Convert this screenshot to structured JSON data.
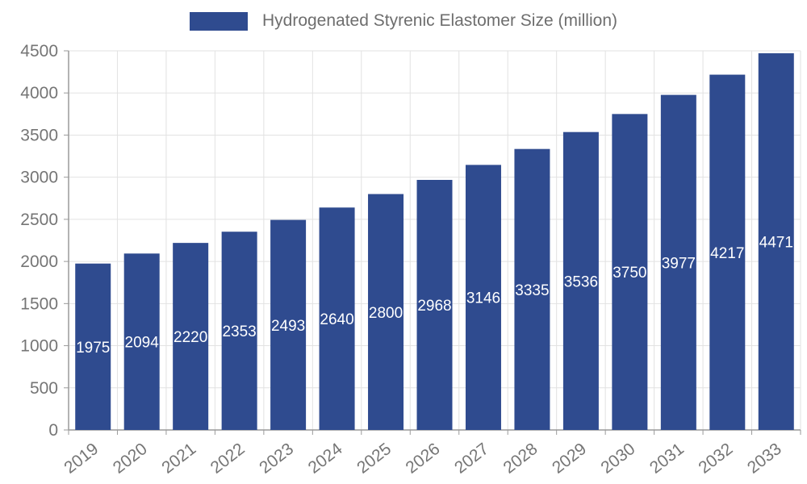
{
  "legend": {
    "label": "Hydrogenated Styrenic Elastomer Size (million)",
    "swatch_color": "#2F4B8F"
  },
  "chart_data": {
    "type": "bar",
    "title": "Hydrogenated Styrenic Elastomer Size (million)",
    "categories": [
      "2019",
      "2020",
      "2021",
      "2022",
      "2023",
      "2024",
      "2025",
      "2026",
      "2027",
      "2028",
      "2029",
      "2030",
      "2031",
      "2032",
      "2033"
    ],
    "values": [
      1975,
      2094,
      2220,
      2353,
      2493,
      2640,
      2800,
      2968,
      3146,
      3335,
      3536,
      3750,
      3977,
      4217,
      4471
    ],
    "xlabel": "",
    "ylabel": "",
    "ylim": [
      0,
      4500
    ],
    "yticks": [
      0,
      500,
      1000,
      1500,
      2000,
      2500,
      3000,
      3500,
      4000,
      4500
    ],
    "grid": true,
    "legend_position": "top",
    "bar_color": "#2F4B8F",
    "bar_label_color": "#ffffff",
    "axis_text_color": "#757575",
    "gridline_color": "#e2e2e2",
    "axis_line_color": "#9a9a9a"
  }
}
